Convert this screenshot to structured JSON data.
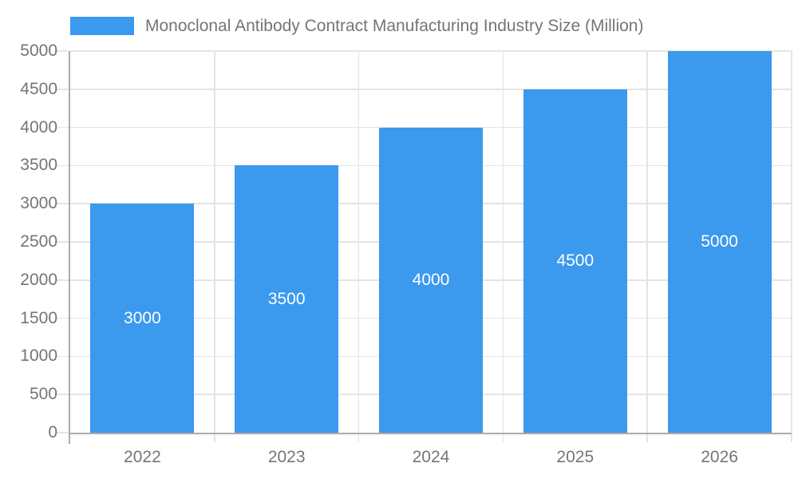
{
  "chart_data": {
    "type": "bar",
    "title": "Monoclonal Antibody Contract Manufacturing Industry Size (Million)",
    "categories": [
      "2022",
      "2023",
      "2024",
      "2025",
      "2026"
    ],
    "values": [
      3000,
      3500,
      4000,
      4500,
      5000
    ],
    "value_labels": [
      "3000",
      "3500",
      "4000",
      "4500",
      "5000"
    ],
    "xlabel": "",
    "ylabel": "",
    "ylim": [
      0,
      5000
    ],
    "ytick_step": 500,
    "yticks": [
      0,
      500,
      1000,
      1500,
      2000,
      2500,
      3000,
      3500,
      4000,
      4500,
      5000
    ],
    "grid": true,
    "legend": {
      "position": "top-left",
      "label": "Monoclonal Antibody Contract Manufacturing Industry Size (Million)"
    },
    "colors": {
      "bar": "#3B99EE",
      "axis_text": "#757575",
      "grid_line": "#E4E4E4",
      "axis_line": "#ABABAB",
      "value_label": "#FFFFFF",
      "background": "#FFFFFF"
    }
  }
}
